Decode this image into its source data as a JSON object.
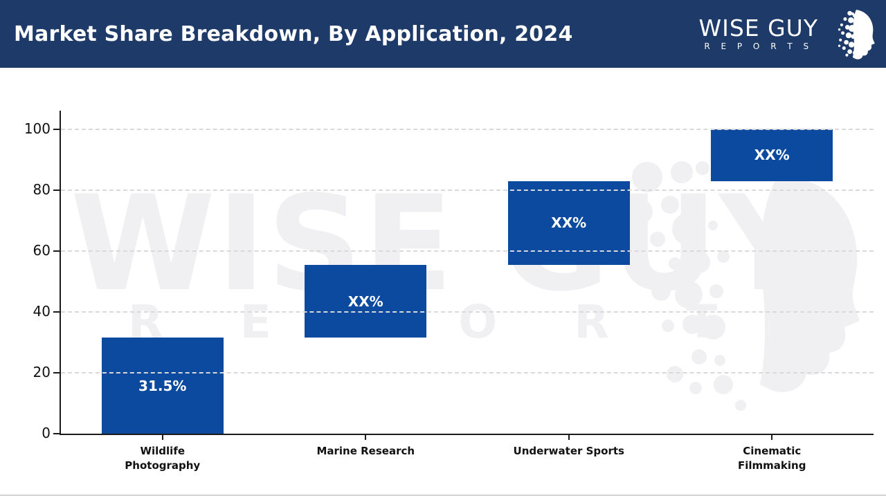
{
  "header": {
    "title": "Market Share Breakdown, By Application, 2024",
    "logo": {
      "name": "WISE GUY",
      "subtitle": "R E P O R T S"
    }
  },
  "watermark": {
    "line1": "WISE GUY",
    "line2": "R E P O R T S"
  },
  "chart_data": {
    "type": "bar",
    "subtype": "waterfall",
    "title": "Market Share Breakdown, By Application, 2024",
    "categories": [
      "Wildlife Photography",
      "Marine Research",
      "Underwater Sports",
      "Cinematic Filmmaking"
    ],
    "category_label_lines": [
      [
        "Wildlife",
        "Photography"
      ],
      [
        "Marine Research"
      ],
      [
        "Underwater Sports"
      ],
      [
        "Cinematic",
        "Filmmaking"
      ]
    ],
    "segments": [
      {
        "category": "Wildlife Photography",
        "start": 0,
        "end": 31.5,
        "label": "31.5%"
      },
      {
        "category": "Marine Research",
        "start": 31.5,
        "end": 55.5,
        "label": "XX%"
      },
      {
        "category": "Underwater Sports",
        "start": 55.5,
        "end": 83,
        "label": "XX%"
      },
      {
        "category": "Cinematic Filmmaking",
        "start": 83,
        "end": 100,
        "label": "XX%"
      }
    ],
    "ylim": [
      0,
      100
    ],
    "yticks": [
      0,
      20,
      40,
      60,
      80,
      100
    ],
    "grid": "horizontal-dashed",
    "legend": "none",
    "xlabel": "",
    "ylabel": ""
  },
  "colors": {
    "header_bg": "#1e3a69",
    "bar": "#0c4aa0",
    "grid": "#d9d9d9",
    "axis": "#1a1a1a",
    "watermark": "#f0f0f3",
    "bar_label": "#ffffff"
  }
}
